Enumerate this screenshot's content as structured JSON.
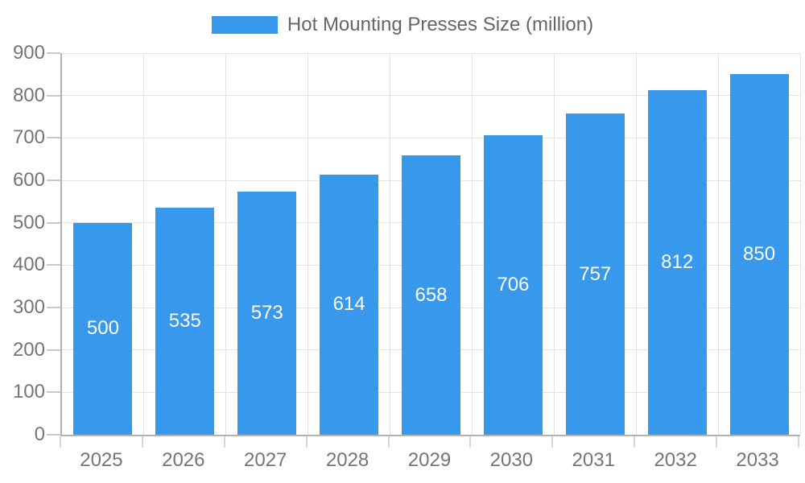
{
  "chart_data": {
    "type": "bar",
    "title": "Hot Mounting Presses Size (million)",
    "categories": [
      "2025",
      "2026",
      "2027",
      "2028",
      "2029",
      "2030",
      "2031",
      "2032",
      "2033"
    ],
    "values": [
      500,
      535,
      573,
      614,
      658,
      706,
      757,
      812,
      850
    ],
    "xlabel": "",
    "ylabel": "",
    "ylim": [
      0,
      900
    ],
    "ytick_step": 100,
    "grid": "on",
    "legend_position": "top",
    "colors": {
      "bar": "#3898ec",
      "value_label": "#ffffff",
      "axis_label": "#757575",
      "legend_text": "#666666",
      "axis_line": "#b2b2b2",
      "gridline": "#e3e3e3"
    }
  }
}
